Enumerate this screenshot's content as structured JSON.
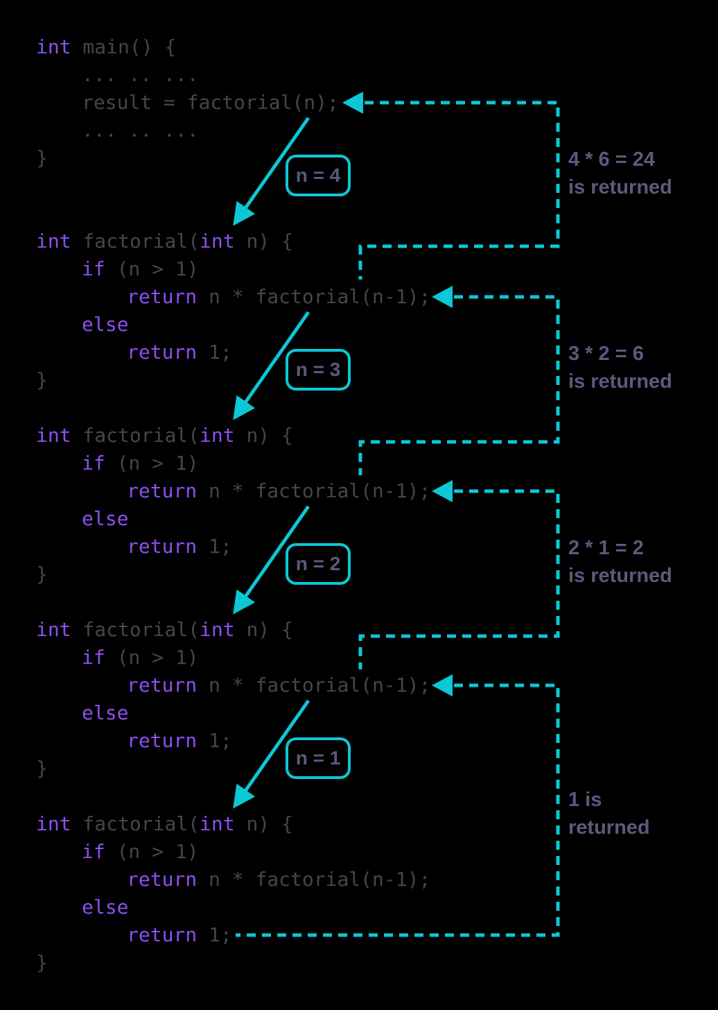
{
  "colors": {
    "background": "#000000",
    "keyword": "#8c4ff2",
    "code_text": "#45454d",
    "accent": "#0cc8d6",
    "note_text": "#5a5a7e"
  },
  "code_blocks": [
    {
      "id": "main-function",
      "lines": [
        {
          "indent": 0,
          "segments": [
            {
              "text": "int",
              "style": "keyword"
            },
            {
              "text": " main() {",
              "style": "plain"
            }
          ]
        },
        {
          "indent": 1,
          "segments": [
            {
              "text": "... .. ...",
              "style": "plain"
            }
          ]
        },
        {
          "indent": 1,
          "segments": [
            {
              "text": "result = factorial(n);",
              "style": "plain"
            }
          ]
        },
        {
          "indent": 1,
          "segments": [
            {
              "text": "... .. ...",
              "style": "plain"
            }
          ]
        },
        {
          "indent": 0,
          "segments": [
            {
              "text": "}",
              "style": "plain"
            }
          ]
        }
      ]
    },
    {
      "id": "factorial-call-n4",
      "lines": [
        {
          "indent": 0,
          "segments": [
            {
              "text": "int",
              "style": "keyword"
            },
            {
              "text": " factorial(",
              "style": "plain"
            },
            {
              "text": "int",
              "style": "keyword"
            },
            {
              "text": " n) {",
              "style": "plain"
            }
          ]
        },
        {
          "indent": 1,
          "segments": [
            {
              "text": "if",
              "style": "keyword"
            },
            {
              "text": " (n > 1)",
              "style": "plain"
            }
          ]
        },
        {
          "indent": 2,
          "segments": [
            {
              "text": "return",
              "style": "keyword"
            },
            {
              "text": " n * factorial(n-1);",
              "style": "plain"
            }
          ]
        },
        {
          "indent": 1,
          "segments": [
            {
              "text": "else",
              "style": "keyword"
            }
          ]
        },
        {
          "indent": 2,
          "segments": [
            {
              "text": "return",
              "style": "keyword"
            },
            {
              "text": " 1;",
              "style": "plain"
            }
          ]
        },
        {
          "indent": 0,
          "segments": [
            {
              "text": "}",
              "style": "plain"
            }
          ]
        }
      ]
    },
    {
      "id": "factorial-call-n3",
      "lines": [
        {
          "indent": 0,
          "segments": [
            {
              "text": "int",
              "style": "keyword"
            },
            {
              "text": " factorial(",
              "style": "plain"
            },
            {
              "text": "int",
              "style": "keyword"
            },
            {
              "text": " n) {",
              "style": "plain"
            }
          ]
        },
        {
          "indent": 1,
          "segments": [
            {
              "text": "if",
              "style": "keyword"
            },
            {
              "text": " (n > 1)",
              "style": "plain"
            }
          ]
        },
        {
          "indent": 2,
          "segments": [
            {
              "text": "return",
              "style": "keyword"
            },
            {
              "text": " n * factorial(n-1);",
              "style": "plain"
            }
          ]
        },
        {
          "indent": 1,
          "segments": [
            {
              "text": "else",
              "style": "keyword"
            }
          ]
        },
        {
          "indent": 2,
          "segments": [
            {
              "text": "return",
              "style": "keyword"
            },
            {
              "text": " 1;",
              "style": "plain"
            }
          ]
        },
        {
          "indent": 0,
          "segments": [
            {
              "text": "}",
              "style": "plain"
            }
          ]
        }
      ]
    },
    {
      "id": "factorial-call-n2",
      "lines": [
        {
          "indent": 0,
          "segments": [
            {
              "text": "int",
              "style": "keyword"
            },
            {
              "text": " factorial(",
              "style": "plain"
            },
            {
              "text": "int",
              "style": "keyword"
            },
            {
              "text": " n) {",
              "style": "plain"
            }
          ]
        },
        {
          "indent": 1,
          "segments": [
            {
              "text": "if",
              "style": "keyword"
            },
            {
              "text": " (n > 1)",
              "style": "plain"
            }
          ]
        },
        {
          "indent": 2,
          "segments": [
            {
              "text": "return",
              "style": "keyword"
            },
            {
              "text": " n * factorial(n-1);",
              "style": "plain"
            }
          ]
        },
        {
          "indent": 1,
          "segments": [
            {
              "text": "else",
              "style": "keyword"
            }
          ]
        },
        {
          "indent": 2,
          "segments": [
            {
              "text": "return",
              "style": "keyword"
            },
            {
              "text": " 1;",
              "style": "plain"
            }
          ]
        },
        {
          "indent": 0,
          "segments": [
            {
              "text": "}",
              "style": "plain"
            }
          ]
        }
      ]
    },
    {
      "id": "factorial-call-n1",
      "lines": [
        {
          "indent": 0,
          "segments": [
            {
              "text": "int",
              "style": "keyword"
            },
            {
              "text": " factorial(",
              "style": "plain"
            },
            {
              "text": "int",
              "style": "keyword"
            },
            {
              "text": " n) {",
              "style": "plain"
            }
          ]
        },
        {
          "indent": 1,
          "segments": [
            {
              "text": "if",
              "style": "keyword"
            },
            {
              "text": " (n > 1)",
              "style": "plain"
            }
          ]
        },
        {
          "indent": 2,
          "segments": [
            {
              "text": "return",
              "style": "keyword"
            },
            {
              "text": " n * factorial(n-1);",
              "style": "plain"
            }
          ]
        },
        {
          "indent": 1,
          "segments": [
            {
              "text": "else",
              "style": "keyword"
            }
          ]
        },
        {
          "indent": 2,
          "segments": [
            {
              "text": "return",
              "style": "keyword"
            },
            {
              "text": " 1;",
              "style": "plain"
            }
          ]
        },
        {
          "indent": 0,
          "segments": [
            {
              "text": "}",
              "style": "plain"
            }
          ]
        }
      ]
    }
  ],
  "call_labels": [
    {
      "text": "n = 4"
    },
    {
      "text": "n = 3"
    },
    {
      "text": "n = 2"
    },
    {
      "text": "n = 1"
    }
  ],
  "return_notes": [
    {
      "line1": "4 * 6 = 24",
      "line2": "is returned"
    },
    {
      "line1": "3 * 2 = 6",
      "line2": "is returned"
    },
    {
      "line1": "2 * 1 = 2",
      "line2": "is returned"
    },
    {
      "line1": "1 is",
      "line2": "returned"
    }
  ]
}
